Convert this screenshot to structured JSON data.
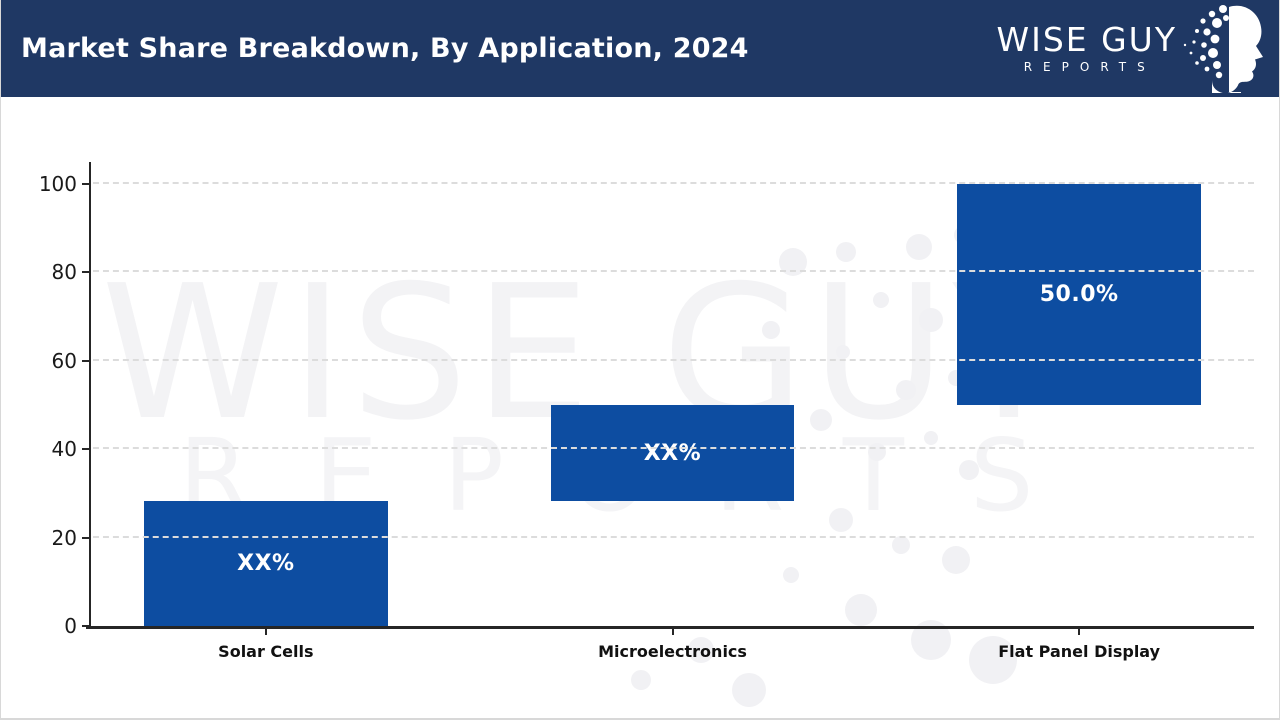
{
  "header": {
    "title": "Market Share Breakdown, By Application, 2024",
    "logo": {
      "line1": "WISE GUY",
      "line2": "REPORTS"
    }
  },
  "watermark": {
    "line1": "WISE GUY",
    "line2": "REPORTS"
  },
  "chart_data": {
    "type": "bar",
    "subtype": "waterfall-segments",
    "title": "Market Share Breakdown, By Application, 2024",
    "categories": [
      "Solar Cells",
      "Microelectronics",
      "Flat Panel Display"
    ],
    "segments": [
      {
        "category": "Solar Cells",
        "start": 0,
        "end": 28.3,
        "value": 28.3,
        "label": "XX%"
      },
      {
        "category": "Microelectronics",
        "start": 28.3,
        "end": 50.0,
        "value": 21.7,
        "label": "XX%"
      },
      {
        "category": "Flat Panel Display",
        "start": 50.0,
        "end": 100.0,
        "value": 50.0,
        "label": "50.0%"
      }
    ],
    "yticks": [
      0,
      20,
      40,
      60,
      80,
      100
    ],
    "ylim": [
      0,
      105
    ],
    "xlim": [
      -0.43,
      2.43
    ],
    "bar_width": 0.6,
    "grid": "horizontal-dashed",
    "legend": false,
    "colors": {
      "bar": "#0d4da1",
      "bar_label": "#ffffff",
      "axis": "#262626",
      "grid": "#dcdcdc",
      "header_bg": "#1f3864",
      "watermark": "#f3f3f5",
      "page_border": "#d8d8d8"
    }
  }
}
